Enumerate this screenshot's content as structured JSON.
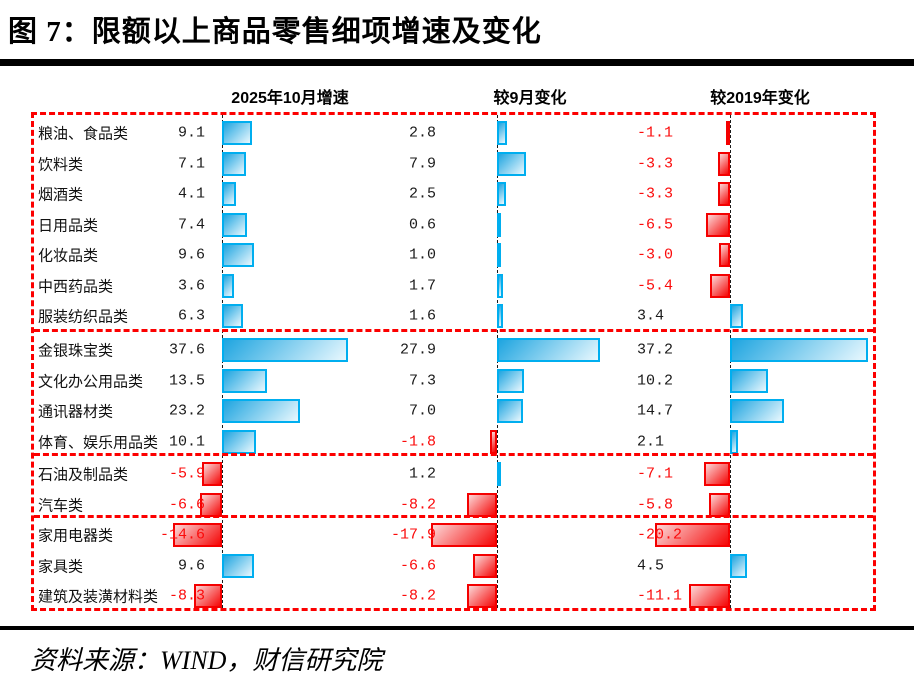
{
  "title": "图 7：限额以上商品零售细项增速及变化",
  "source": "资料来源：WIND，财信研究院",
  "columns": [
    "2025年10月增速",
    "较9月变化",
    "较2019年变化"
  ],
  "colors": {
    "chart_border_red": "#fc0000",
    "zero_axis_black": "#1a1a1a",
    "bar_blue_deep": "#1fa5e0",
    "bar_blue_light": "#e9f8fe",
    "bar_blue_border": "#00aeef",
    "bar_red_deep": "#f50606",
    "bar_red_light": "#fcd7d7",
    "bar_red_border": "#f40000",
    "value_positive_text": "#1a1a1a",
    "value_negative_text": "#fb0b0b"
  },
  "chart_data": {
    "type": "bar",
    "orientation": "horizontal",
    "unit": "%",
    "series_names": [
      "2025年10月增速",
      "较9月变化",
      "较2019年变化"
    ],
    "legend": "none",
    "grid": "off",
    "groups": [
      {
        "rows": [
          {
            "label": "粮油、食品类",
            "values": [
              9.1,
              2.8,
              -1.1
            ]
          },
          {
            "label": "饮料类",
            "values": [
              7.1,
              7.9,
              -3.3
            ]
          },
          {
            "label": "烟酒类",
            "values": [
              4.1,
              2.5,
              -3.3
            ]
          },
          {
            "label": "日用品类",
            "values": [
              7.4,
              0.6,
              -6.5
            ]
          },
          {
            "label": "化妆品类",
            "values": [
              9.6,
              1.0,
              -3.0
            ]
          },
          {
            "label": "中西药品类",
            "values": [
              3.6,
              1.7,
              -5.4
            ]
          },
          {
            "label": "服装纺织品类",
            "values": [
              6.3,
              1.6,
              3.4
            ]
          }
        ]
      },
      {
        "rows": [
          {
            "label": "金银珠宝类",
            "values": [
              37.6,
              27.9,
              37.2
            ]
          },
          {
            "label": "文化办公用品类",
            "values": [
              13.5,
              7.3,
              10.2
            ]
          },
          {
            "label": "通讯器材类",
            "values": [
              23.2,
              7.0,
              14.7
            ]
          },
          {
            "label": "体育、娱乐用品类",
            "values": [
              10.1,
              -1.8,
              2.1
            ]
          }
        ]
      },
      {
        "rows": [
          {
            "label": "石油及制品类",
            "values": [
              -5.9,
              1.2,
              -7.1
            ]
          },
          {
            "label": "汽车类",
            "values": [
              -6.6,
              -8.2,
              -5.8
            ]
          }
        ]
      },
      {
        "rows": [
          {
            "label": "家用电器类",
            "values": [
              -14.6,
              -17.9,
              -20.2
            ]
          },
          {
            "label": "家具类",
            "values": [
              9.6,
              -6.6,
              4.5
            ]
          },
          {
            "label": "建筑及装潢材料类",
            "values": [
              -8.3,
              -8.2,
              -11.1
            ]
          }
        ]
      }
    ]
  }
}
